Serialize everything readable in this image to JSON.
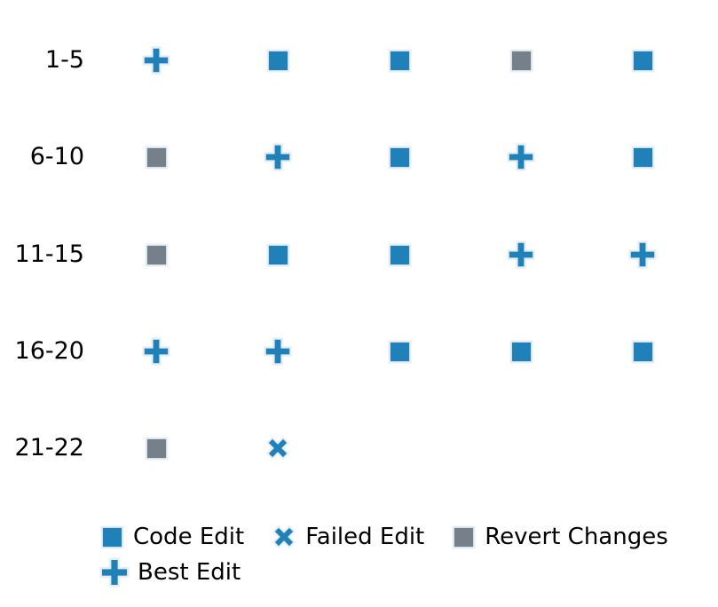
{
  "colors": {
    "blue": "#1f81b8",
    "gray": "#75808a",
    "halo": "#e6eef5",
    "text": "#000000",
    "background": "#ffffff"
  },
  "chart_data": {
    "type": "scatter",
    "title": "",
    "xlabel": "",
    "ylabel": "",
    "grid": false,
    "legend_position": "bottom",
    "categories_y": [
      "1-5",
      "6-10",
      "11-15",
      "16-20",
      "21-22"
    ],
    "columns_per_row": 5,
    "cells": [
      [
        "Best Edit",
        "Code Edit",
        "Code Edit",
        "Revert Changes",
        "Code Edit"
      ],
      [
        "Revert Changes",
        "Best Edit",
        "Code Edit",
        "Best Edit",
        "Code Edit"
      ],
      [
        "Revert Changes",
        "Code Edit",
        "Code Edit",
        "Best Edit",
        "Best Edit"
      ],
      [
        "Best Edit",
        "Best Edit",
        "Code Edit",
        "Code Edit",
        "Code Edit"
      ],
      [
        "Revert Changes",
        "Failed Edit",
        null,
        null,
        null
      ]
    ],
    "legend": [
      {
        "label": "Code Edit",
        "marker": "square",
        "color": "#1f81b8"
      },
      {
        "label": "Failed Edit",
        "marker": "x",
        "color": "#1f81b8"
      },
      {
        "label": "Revert Changes",
        "marker": "square",
        "color": "#75808a"
      },
      {
        "label": "Best Edit",
        "marker": "plus",
        "color": "#1f81b8"
      }
    ]
  },
  "grid": {
    "rows": [
      {
        "label": "1-5",
        "markers": [
          "best",
          "code",
          "code",
          "revert",
          "code"
        ]
      },
      {
        "label": "6-10",
        "markers": [
          "revert",
          "best",
          "code",
          "best",
          "code"
        ]
      },
      {
        "label": "11-15",
        "markers": [
          "revert",
          "code",
          "code",
          "best",
          "best"
        ]
      },
      {
        "label": "16-20",
        "markers": [
          "best",
          "best",
          "code",
          "code",
          "code"
        ]
      },
      {
        "label": "21-22",
        "markers": [
          "revert",
          "failed",
          null,
          null,
          null
        ]
      }
    ]
  },
  "legend": {
    "rows": [
      [
        {
          "type": "code",
          "label": "Code Edit"
        },
        {
          "type": "failed",
          "label": "Failed Edit"
        },
        {
          "type": "revert",
          "label": "Revert Changes"
        }
      ],
      [
        {
          "type": "best",
          "label": "Best Edit"
        }
      ]
    ]
  }
}
